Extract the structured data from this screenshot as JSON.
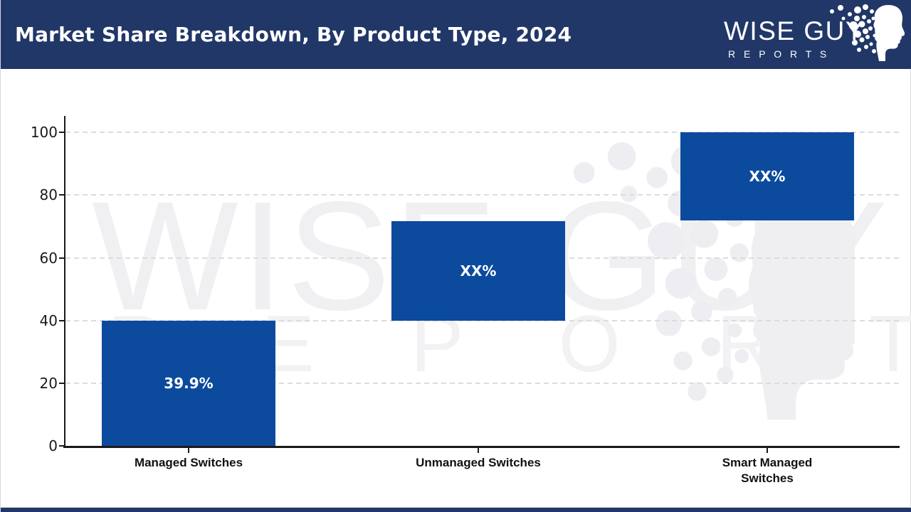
{
  "header": {
    "title": "Market Share Breakdown, By Product Type, 2024",
    "logo": {
      "line1": "WISE GUY",
      "line2": "R E P O R T S"
    }
  },
  "watermark": {
    "line1": "WISE GUY",
    "line2": "R E P O R T S"
  },
  "chart_data": {
    "type": "bar",
    "subtype": "floating-waterfall",
    "title": "Market Share Breakdown, By Product Type, 2024",
    "categories": [
      "Managed Switches",
      "Unmanaged Switches",
      "Smart Managed Switches"
    ],
    "segments": [
      {
        "category": "Managed Switches",
        "start": 0,
        "end": 39.9,
        "label": "39.9%"
      },
      {
        "category": "Unmanaged Switches",
        "start": 39.9,
        "end": 71.8,
        "label": "XX%"
      },
      {
        "category": "Smart Managed Switches",
        "start": 71.8,
        "end": 100,
        "label": "XX%"
      }
    ],
    "xlabel": "",
    "ylabel": "",
    "ylim": [
      0,
      105
    ],
    "yticks": [
      0,
      20,
      40,
      60,
      80,
      100
    ],
    "grid": "horizontal-dashed",
    "legend": "none",
    "bar_color": "#0c4a9e",
    "bar_label_color": "#ffffff"
  },
  "colors": {
    "header_bg": "#213768",
    "footer_bg": "#213768",
    "bar": "#0c4a9e",
    "axis": "#1a1a1a",
    "grid": "#dcdcdc",
    "watermark": "#f0f0f3"
  }
}
